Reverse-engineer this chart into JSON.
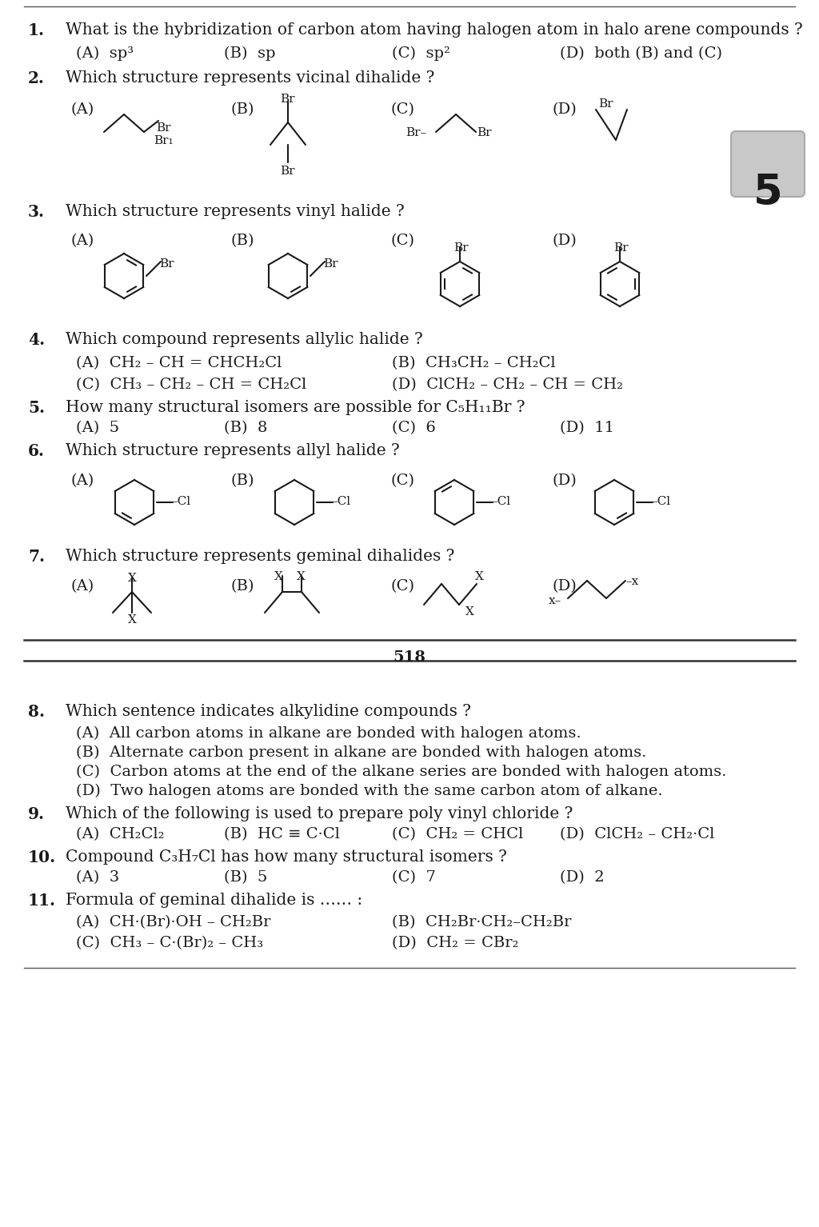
{
  "bg_color": "#ffffff",
  "text_color": "#1a1a1a",
  "q1_num": "1.",
  "q1_text": "What is the hybridization of carbon atom having halogen atom in halo arene compounds ?",
  "q1_a": "(A)  sp³",
  "q1_b": "(B)  sp",
  "q1_c": "(C)  sp²",
  "q1_d": "(D)  both (B) and (C)",
  "q2_num": "2.",
  "q2_text": "Which structure represents vicinal dihalide ?",
  "q3_num": "3.",
  "q3_text": "Which structure represents vinyl halide ?",
  "q4_num": "4.",
  "q4_text": "Which compound represents allylic halide ?",
  "q4_a": "(A)  CH₂ – CH = CHCH₂Cl",
  "q4_b": "(B)  CH₃CH₂ – CH₂Cl",
  "q4_c": "(C)  CH₃ – CH₂ – CH = CH₂Cl",
  "q4_d": "(D)  ClCH₂ – CH₂ – CH = CH₂",
  "q5_num": "5.",
  "q5_text": "How many structural isomers are possible for C₅H₁₁Br ?",
  "q5_a": "(A)  5",
  "q5_b": "(B)  8",
  "q5_c": "(C)  6",
  "q5_d": "(D)  11",
  "q6_num": "6.",
  "q6_text": "Which structure represents allyl halide ?",
  "q7_num": "7.",
  "q7_text": "Which structure represents geminal dihalides ?",
  "page_num": "518",
  "q8_num": "8.",
  "q8_text": "Which sentence indicates alkylidine compounds ?",
  "q8_a": "(A)  All carbon atoms in alkane are bonded with halogen atoms.",
  "q8_b": "(B)  Alternate carbon present in alkane are bonded with halogen atoms.",
  "q8_c": "(C)  Carbon atoms at the end of the alkane series are bonded with halogen atoms.",
  "q8_d": "(D)  Two halogen atoms are bonded with the same carbon atom of alkane.",
  "q9_num": "9.",
  "q9_text": "Which of the following is used to prepare poly vinyl chloride ?",
  "q9_a": "(A)  CH₂Cl₂",
  "q9_b": "(B)  HC ≡ C·Cl",
  "q9_c": "(C)  CH₂ = CHCl",
  "q9_d": "(D)  ClCH₂ – CH₂·Cl",
  "q10_num": "10.",
  "q10_text": "Compound C₃H₇Cl has how many structural isomers ?",
  "q10_a": "(A)  3",
  "q10_b": "(B)  5",
  "q10_c": "(C)  7",
  "q10_d": "(D)  2",
  "q11_num": "11.",
  "q11_text": "Formula of geminal dihalide is …… :",
  "q11_a": "(A)  CH·(Br)·OH – CH₂Br",
  "q11_b": "(B)  CH₂Br·CH₂–CH₂Br",
  "q11_c": "(C)  CH₃ – C·(Br)₂ – CH₃",
  "q11_d": "(D)  CH₂ = CBr₂"
}
